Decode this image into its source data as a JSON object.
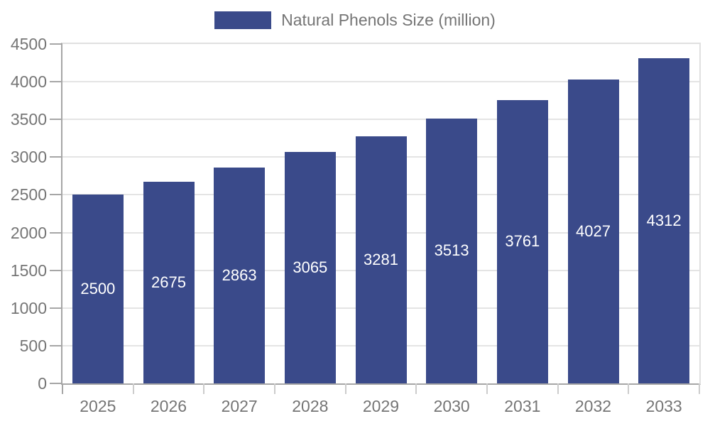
{
  "chart_data": {
    "type": "bar",
    "title": "Natural Phenols Size (million)",
    "legend": {
      "label": "Natural Phenols Size (million)",
      "position": "top-center"
    },
    "categories": [
      "2025",
      "2026",
      "2027",
      "2028",
      "2029",
      "2030",
      "2031",
      "2032",
      "2033"
    ],
    "series": [
      {
        "name": "Natural Phenols Size (million)",
        "values": [
          2500,
          2675,
          2863,
          3065,
          3281,
          3513,
          3761,
          4027,
          4312
        ]
      }
    ],
    "ylim": [
      0,
      4500
    ],
    "ytick_step": 500,
    "yticks": [
      0,
      500,
      1000,
      1500,
      2000,
      2500,
      3000,
      3500,
      4000,
      4500
    ],
    "grid": true,
    "value_labels": "centered-inside-bars",
    "colors": {
      "bar": "#3A4A8A",
      "value_label": "#ffffff",
      "axis_line": "#a6a6a6",
      "gridline": "#e4e4e4",
      "plot_border": "#e0e0e0",
      "axis_text": "#757575"
    }
  }
}
